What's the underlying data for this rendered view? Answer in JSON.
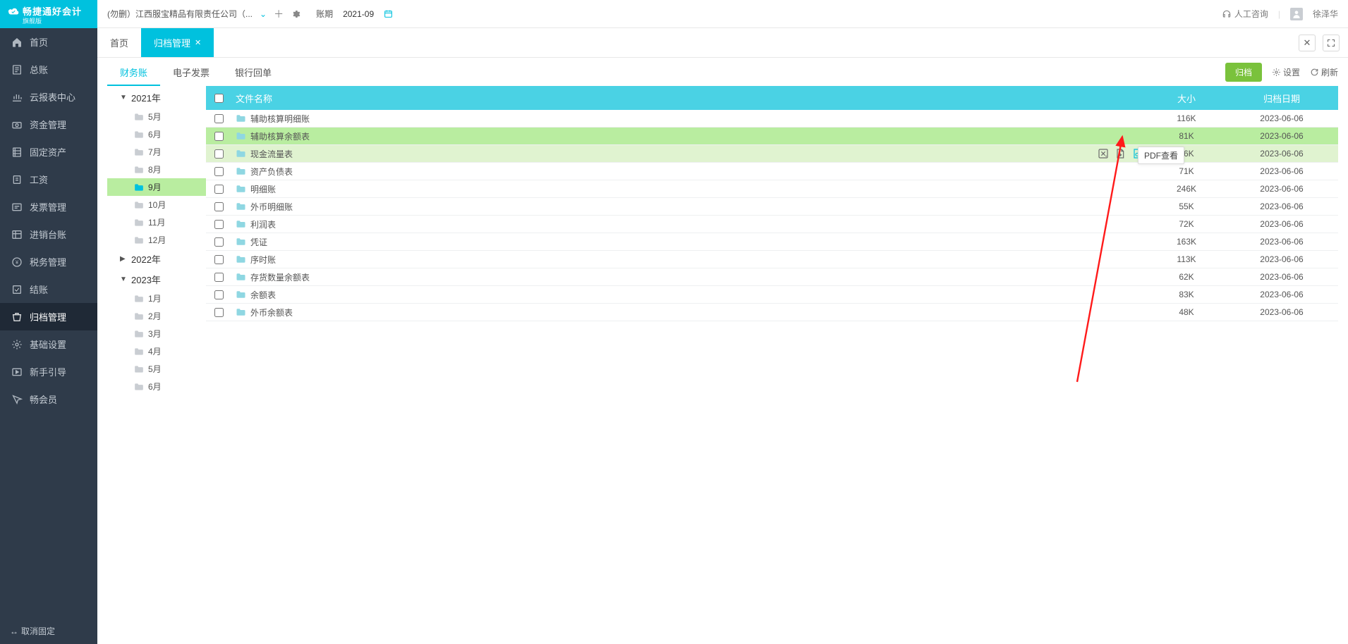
{
  "brand": {
    "name": "畅捷通好会计",
    "edition": "旗舰版"
  },
  "sidebar": {
    "items": [
      {
        "label": "首页"
      },
      {
        "label": "总账"
      },
      {
        "label": "云报表中心"
      },
      {
        "label": "资金管理"
      },
      {
        "label": "固定资产"
      },
      {
        "label": "工资"
      },
      {
        "label": "发票管理"
      },
      {
        "label": "进销台账"
      },
      {
        "label": "税务管理"
      },
      {
        "label": "结账"
      },
      {
        "label": "归档管理"
      },
      {
        "label": "基础设置"
      },
      {
        "label": "新手引导"
      },
      {
        "label": "畅会员"
      }
    ],
    "active_index": 10,
    "footer": "取消固定"
  },
  "topbar": {
    "company": "(勿删）江西服宝精品有限责任公司（...",
    "period_label": "账期",
    "period_value": "2021-09",
    "consult": "人工咨询",
    "user": "徐泽华"
  },
  "tabs": {
    "items": [
      {
        "label": "首页",
        "closable": false
      },
      {
        "label": "归档管理",
        "closable": true
      }
    ],
    "active_index": 1
  },
  "subtabs": {
    "items": [
      "财务账",
      "电子发票",
      "银行回单"
    ],
    "active_index": 0
  },
  "actions": {
    "primary": "归档",
    "settings": "设置",
    "refresh": "刷新"
  },
  "tree": {
    "years": [
      {
        "label": "2021年",
        "expanded": true,
        "months": [
          "5月",
          "6月",
          "7月",
          "8月",
          "9月",
          "10月",
          "11月",
          "12月"
        ],
        "active_month_index": 4
      },
      {
        "label": "2022年",
        "expanded": false,
        "months": []
      },
      {
        "label": "2023年",
        "expanded": true,
        "months": [
          "1月",
          "2月",
          "3月",
          "4月",
          "5月",
          "6月"
        ],
        "active_month_index": -1
      }
    ]
  },
  "table": {
    "columns": {
      "name": "文件名称",
      "size": "大小",
      "date": "归档日期"
    },
    "rows": [
      {
        "name": "辅助核算明细账",
        "size": "116K",
        "date": "2023-06-06"
      },
      {
        "name": "辅助核算余额表",
        "size": "81K",
        "date": "2023-06-06",
        "selected": true
      },
      {
        "name": "现金流量表",
        "size": "66K",
        "date": "2023-06-06",
        "hover": true
      },
      {
        "name": "资产负债表",
        "size": "71K",
        "date": "2023-06-06"
      },
      {
        "name": "明细账",
        "size": "246K",
        "date": "2023-06-06"
      },
      {
        "name": "外币明细账",
        "size": "55K",
        "date": "2023-06-06"
      },
      {
        "name": "利润表",
        "size": "72K",
        "date": "2023-06-06"
      },
      {
        "name": "凭证",
        "size": "163K",
        "date": "2023-06-06"
      },
      {
        "name": "序时账",
        "size": "113K",
        "date": "2023-06-06"
      },
      {
        "name": "存货数量余额表",
        "size": "62K",
        "date": "2023-06-06"
      },
      {
        "name": "余额表",
        "size": "83K",
        "date": "2023-06-06"
      },
      {
        "name": "外币余额表",
        "size": "48K",
        "date": "2023-06-06"
      }
    ],
    "hover_tooltip": "PDF查看"
  },
  "colors": {
    "brand": "#00c1de",
    "sidebar_bg": "#2f3b4a",
    "sidebar_active": "#1f2936",
    "table_header": "#4ad2e4",
    "row_selected": "#b9eda0",
    "row_hover": "#e0f3d0",
    "primary_btn": "#7ac23c",
    "arrow": "#ff1a1a"
  }
}
